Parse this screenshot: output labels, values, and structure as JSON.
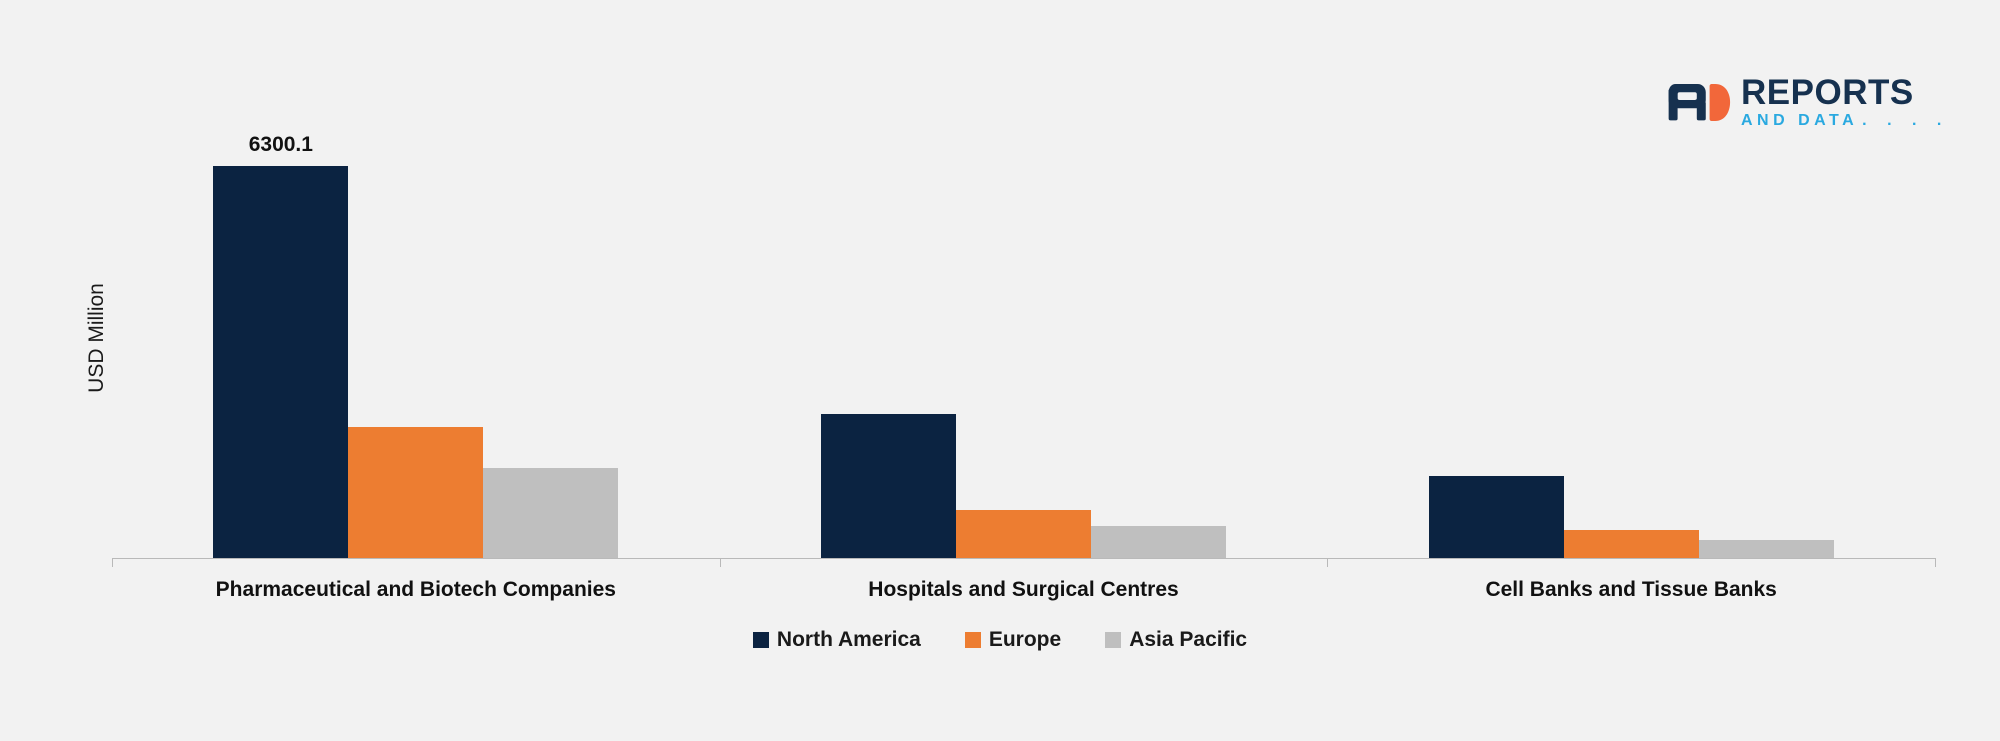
{
  "background_color": "#f2f2f2",
  "logo": {
    "line1": "REPORTS",
    "line2": "AND DATA",
    "dots": ". . . .",
    "navy": "#16314f",
    "orange": "#f2673a",
    "blue": "#2aa9e0"
  },
  "chart_data": {
    "type": "bar",
    "title": "",
    "xlabel": "",
    "ylabel": "USD Million",
    "categories": [
      "Pharmaceutical and Biotech Companies",
      "Hospitals and Surgical Centres",
      "Cell Banks and Tissue Banks"
    ],
    "series": [
      {
        "name": "North America",
        "color": "#0b2341",
        "values": [
          6300.1,
          2320,
          1320
        ]
      },
      {
        "name": "Europe",
        "color": "#ed7d31",
        "values": [
          2110,
          770,
          450
        ]
      },
      {
        "name": "Asia Pacific",
        "color": "#bfbfbf",
        "values": [
          1445,
          515,
          290
        ]
      }
    ],
    "bar_labels": [
      {
        "series": 0,
        "category": 0,
        "text": "6300.1"
      }
    ],
    "ylim": [
      0,
      6800
    ],
    "grid": false,
    "legend_position": "bottom",
    "axis_color": "#b9b9b9"
  }
}
